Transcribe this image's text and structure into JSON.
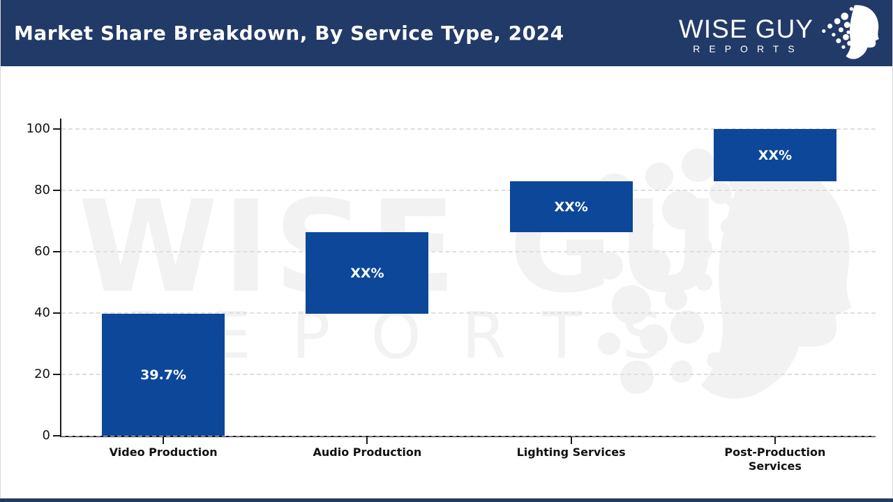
{
  "header": {
    "title": "Market Share Breakdown, By Service Type, 2024",
    "bg_color": "#223A68",
    "logo": {
      "line1": "WISE GUY",
      "line2": "REPORTS"
    }
  },
  "watermark": {
    "line1": "WISE GUY",
    "line2": "REPORTS"
  },
  "chart_data": {
    "type": "bar",
    "subtype": "waterfall",
    "title": "Market Share Breakdown, By Service Type, 2024",
    "categories": [
      "Video Production",
      "Audio Production",
      "Lighting Services",
      "Post-Production Services"
    ],
    "bars": [
      {
        "category": "Video Production",
        "start": 0,
        "end": 39.7,
        "label": "39.7%"
      },
      {
        "category": "Audio Production",
        "start": 39.7,
        "end": 66.3,
        "label": "XX%"
      },
      {
        "category": "Lighting Services",
        "start": 66.3,
        "end": 82.9,
        "label": "XX%"
      },
      {
        "category": "Post-Production Services",
        "start": 82.9,
        "end": 100,
        "label": "XX%"
      }
    ],
    "xlabel": "",
    "ylabel": "",
    "ylim": [
      0,
      100
    ],
    "yticks": [
      0,
      20,
      40,
      60,
      80,
      100
    ],
    "grid": "horizontal-dashed",
    "legend": "none",
    "bar_color": "#0C4799",
    "bar_label_color": "#FFFFFF",
    "axis_color": "#1a1a1a"
  },
  "footer": {
    "bg_color": "#223A68"
  }
}
